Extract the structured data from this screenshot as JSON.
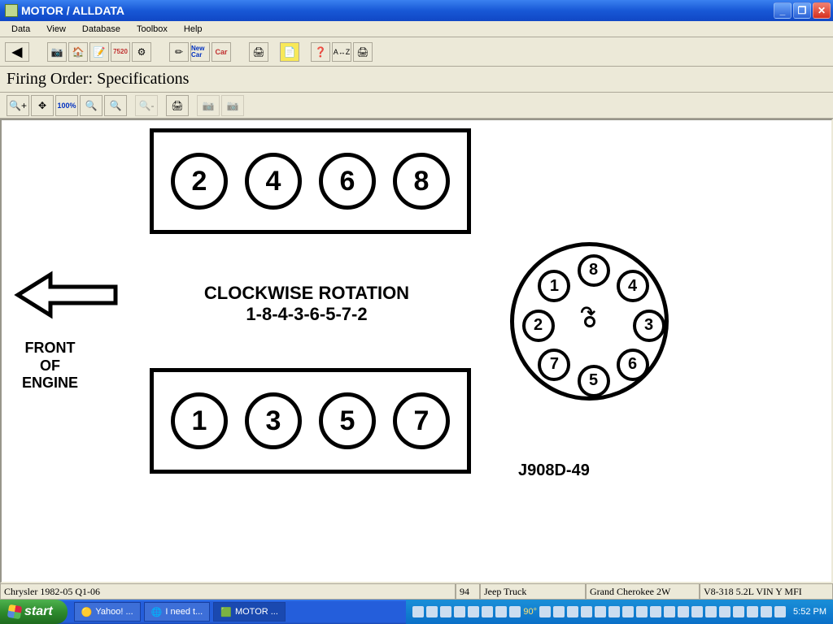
{
  "window": {
    "title": "MOTOR / ALLDATA"
  },
  "menus": [
    "Data",
    "View",
    "Database",
    "Toolbox",
    "Help"
  ],
  "toolbar1": {
    "back": "◀",
    "icons": [
      "📷",
      "🏠",
      "📝",
      "7520",
      "⚙",
      "",
      "✏",
      "New Car",
      "Car",
      "",
      "🖨",
      "",
      "📄",
      "❓",
      "A↔Z",
      "🖨"
    ]
  },
  "path": "Firing Order:  Specifications",
  "toolbar2": [
    "🔍+",
    "✥",
    "100%",
    "🔍",
    "🔍",
    "🔍-",
    "🖨",
    "📷",
    "📷"
  ],
  "diagram": {
    "top_bank": [
      "2",
      "4",
      "6",
      "8"
    ],
    "bottom_bank": [
      "1",
      "3",
      "5",
      "7"
    ],
    "rotation_line1": "CLOCKWISE ROTATION",
    "rotation_line2": "1-8-4-3-6-5-7-2",
    "front_label": "FRONT\nOF\nENGINE",
    "distributor_positions": [
      {
        "n": "8",
        "angle": -90
      },
      {
        "n": "4",
        "angle": -45
      },
      {
        "n": "3",
        "angle": 0
      },
      {
        "n": "6",
        "angle": 45
      },
      {
        "n": "5",
        "angle": 90
      },
      {
        "n": "7",
        "angle": 135
      },
      {
        "n": "2",
        "angle": 180
      },
      {
        "n": "1",
        "angle": 225
      }
    ],
    "figure_no": "J908D-49",
    "colors": {
      "stroke": "#000000",
      "bg": "#ffffff"
    }
  },
  "status": {
    "left": "Chrysler 1982-05 Q1-06",
    "num": "94",
    "mid": "Jeep Truck",
    "r1": "Grand Cherokee 2W",
    "r2": "V8-318 5.2L VIN Y MFI"
  },
  "taskbar": {
    "start": "start",
    "items": [
      {
        "icon": "🟡",
        "label": "Yahoo! ..."
      },
      {
        "icon": "🌐",
        "label": "I need t..."
      },
      {
        "icon": "🟩",
        "label": "MOTOR ...",
        "active": true
      }
    ],
    "clock": "5:52 PM",
    "tray_temp": "90°"
  }
}
